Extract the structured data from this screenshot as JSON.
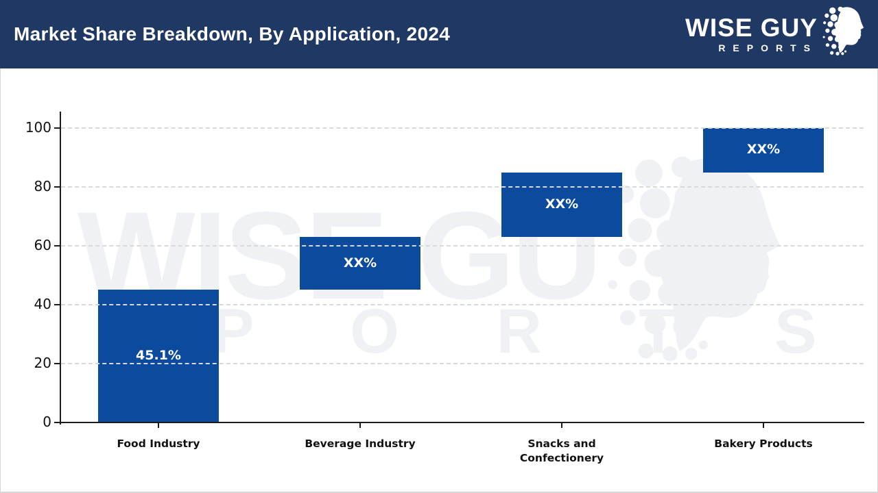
{
  "header": {
    "title": "Market Share Breakdown, By Application, 2024",
    "bg_color": "#1f3864",
    "logo": {
      "line1": "WISE GUY",
      "line2": "REPORTS",
      "head_icon": "dotted-head-profile-icon"
    }
  },
  "watermark": {
    "line1": "WISE GU",
    "line2": "P O R T S",
    "head_icon": "dotted-head-profile-watermark",
    "color": "#f0f1f4"
  },
  "chart_data": {
    "type": "bar",
    "subtype": "floating-cumulative-percent-bars",
    "title": "Market Share Breakdown, By Application, 2024",
    "xlabel": "",
    "ylabel": "",
    "ylim": [
      0,
      105
    ],
    "yticks": [
      "0",
      "20",
      "40",
      "60",
      "80",
      "100"
    ],
    "ytick_values": [
      0,
      20,
      40,
      60,
      80,
      100
    ],
    "grid": "dashed-horizontal",
    "legend": "none",
    "bar_color": "#0c4a9e",
    "categories": [
      "Food Industry",
      "Beverage Industry",
      "Snacks and Confectionery",
      "Bakery Products"
    ],
    "segments": [
      {
        "category": "Food Industry",
        "start": 0,
        "end": 45.1,
        "label": "45.1%"
      },
      {
        "category": "Beverage Industry",
        "start": 45.1,
        "end": 63,
        "label": "XX%"
      },
      {
        "category": "Snacks and Confectionery",
        "start": 63,
        "end": 85,
        "label": "XX%"
      },
      {
        "category": "Bakery Products",
        "start": 85,
        "end": 100,
        "label": "XX%"
      }
    ]
  }
}
